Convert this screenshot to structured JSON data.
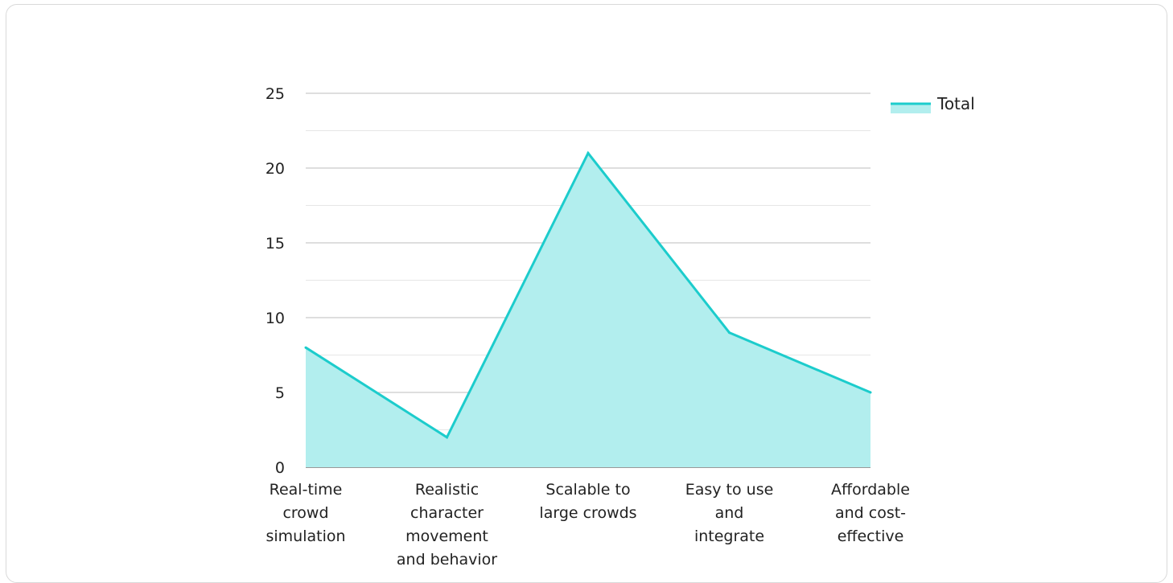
{
  "chart_data": {
    "type": "area",
    "categories": [
      [
        "Real-time",
        "crowd",
        "simulation"
      ],
      [
        "Realistic",
        "character",
        "movement",
        "and behavior"
      ],
      [
        "Scalable to",
        "large crowds"
      ],
      [
        "Easy to use",
        "and",
        "integrate"
      ],
      [
        "Affordable",
        "and cost-",
        "effective"
      ]
    ],
    "series": [
      {
        "name": "Total",
        "values": [
          8,
          2,
          21,
          9,
          5
        ]
      }
    ],
    "ylim": [
      0,
      25
    ],
    "yticks": [
      0,
      5,
      10,
      15,
      20,
      25
    ],
    "grid": true,
    "legend": "top-right",
    "colors": {
      "line": "#1ccccc",
      "fill": "#b2eeee",
      "grid_major": "#bdbdbd",
      "grid_minor": "#e6e6e6"
    }
  }
}
